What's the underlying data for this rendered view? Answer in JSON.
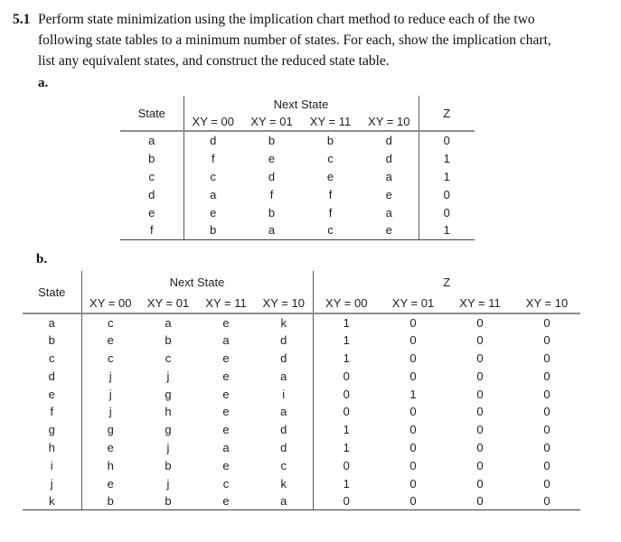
{
  "problem": {
    "number": "5.1",
    "lines": [
      "Perform state minimization using the implication chart method to reduce each of the two",
      "following state tables to a minimum number of states. For each, show the implication chart,",
      "list any equivalent states, and construct the reduced state table."
    ]
  },
  "table_a": {
    "label": "a.",
    "headers": {
      "state": "State",
      "next_state": "Next State",
      "z": "Z",
      "inputs": [
        "XY = 00",
        "XY = 01",
        "XY = 11",
        "XY = 10"
      ]
    },
    "rows": [
      {
        "state": "a",
        "next": [
          "d",
          "b",
          "b",
          "d"
        ],
        "z": "0"
      },
      {
        "state": "b",
        "next": [
          "f",
          "e",
          "c",
          "d"
        ],
        "z": "1"
      },
      {
        "state": "c",
        "next": [
          "c",
          "d",
          "e",
          "a"
        ],
        "z": "1"
      },
      {
        "state": "d",
        "next": [
          "a",
          "f",
          "f",
          "e"
        ],
        "z": "0"
      },
      {
        "state": "e",
        "next": [
          "e",
          "b",
          "f",
          "a"
        ],
        "z": "0"
      },
      {
        "state": "f",
        "next": [
          "b",
          "a",
          "c",
          "e"
        ],
        "z": "1"
      }
    ]
  },
  "table_b": {
    "label": "b.",
    "headers": {
      "state": "State",
      "next_state": "Next State",
      "z": "Z",
      "inputs": [
        "XY = 00",
        "XY = 01",
        "XY = 11",
        "XY = 10"
      ]
    },
    "rows": [
      {
        "state": "a",
        "next": [
          "c",
          "a",
          "e",
          "k"
        ],
        "z": [
          "1",
          "0",
          "0",
          "0"
        ]
      },
      {
        "state": "b",
        "next": [
          "e",
          "b",
          "a",
          "d"
        ],
        "z": [
          "1",
          "0",
          "0",
          "0"
        ]
      },
      {
        "state": "c",
        "next": [
          "c",
          "c",
          "e",
          "d"
        ],
        "z": [
          "1",
          "0",
          "0",
          "0"
        ]
      },
      {
        "state": "d",
        "next": [
          "j",
          "j",
          "e",
          "a"
        ],
        "z": [
          "0",
          "0",
          "0",
          "0"
        ]
      },
      {
        "state": "e",
        "next": [
          "j",
          "g",
          "e",
          "i"
        ],
        "z": [
          "0",
          "1",
          "0",
          "0"
        ]
      },
      {
        "state": "f",
        "next": [
          "j",
          "h",
          "e",
          "a"
        ],
        "z": [
          "0",
          "0",
          "0",
          "0"
        ]
      },
      {
        "state": "g",
        "next": [
          "g",
          "g",
          "e",
          "d"
        ],
        "z": [
          "1",
          "0",
          "0",
          "0"
        ]
      },
      {
        "state": "h",
        "next": [
          "e",
          "j",
          "a",
          "d"
        ],
        "z": [
          "1",
          "0",
          "0",
          "0"
        ]
      },
      {
        "state": "i",
        "next": [
          "h",
          "b",
          "e",
          "c"
        ],
        "z": [
          "0",
          "0",
          "0",
          "0"
        ]
      },
      {
        "state": "j",
        "next": [
          "e",
          "j",
          "c",
          "k"
        ],
        "z": [
          "1",
          "0",
          "0",
          "0"
        ]
      },
      {
        "state": "k",
        "next": [
          "b",
          "b",
          "e",
          "a"
        ],
        "z": [
          "0",
          "0",
          "0",
          "0"
        ]
      }
    ]
  }
}
